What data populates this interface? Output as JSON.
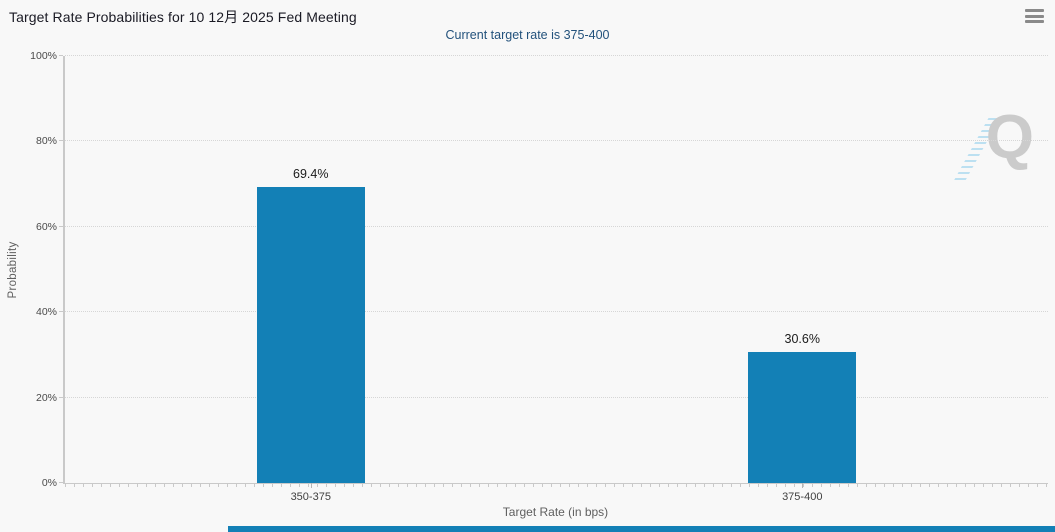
{
  "title": "Target Rate Probabilities for 10 12月 2025 Fed Meeting",
  "subtitle": "Current target rate is 375-400",
  "watermark_letter": "Q",
  "x_axis_title": "Target Rate (in bps)",
  "y_axis_title": "Probability",
  "chart_data": {
    "type": "bar",
    "title": "Target Rate Probabilities for 10 12月 2025 Fed Meeting",
    "subtitle": "Current target rate is 375-400",
    "categories": [
      "350-375",
      "375-400"
    ],
    "values": [
      69.4,
      30.6
    ],
    "value_labels": [
      "69.4%",
      "30.6%"
    ],
    "xlabel": "Target Rate (in bps)",
    "ylabel": "Probability",
    "ylim": [
      0,
      100
    ],
    "yticks": [
      0,
      20,
      40,
      60,
      80,
      100
    ],
    "ytick_labels": [
      "0%",
      "20%",
      "40%",
      "60%",
      "80%",
      "100%"
    ],
    "grid": "horizontal-dotted",
    "legend": "none",
    "bar_color": "#1380B6"
  },
  "colors": {
    "background": "#F8F8F8",
    "bar": "#1380B6",
    "title_text": "#1A1A24",
    "subtitle_text": "#23527C",
    "axis_line": "#C9C9C9",
    "gridline": "#D6D6D6",
    "tick_text": "#4A4A4A",
    "axis_title_text": "#5F5F5F",
    "menu_icon": "#8A8A8A",
    "watermark": "#CBCBCB",
    "watermark_stripes": "#A8D8EF"
  }
}
